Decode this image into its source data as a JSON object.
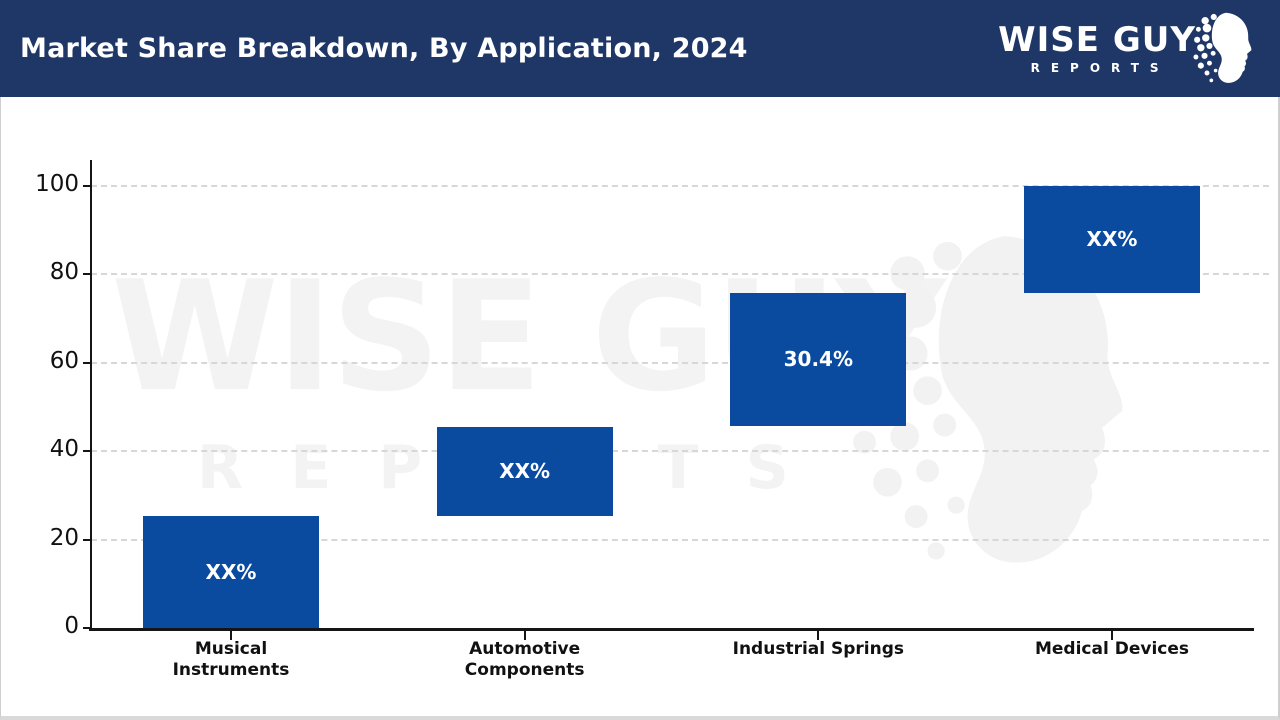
{
  "header": {
    "title": "Market Share Breakdown, By Application, 2024",
    "logo": {
      "brand": "WISE GUY",
      "sub": "REPORTS"
    }
  },
  "watermark": {
    "brand": "WISE GUY",
    "sub": "REPORTS"
  },
  "colors": {
    "header_bg": "#1f3767",
    "bar": "#0a4a9f",
    "bar_label": "#ffffff",
    "grid": "#d7d7d7",
    "axis": "#151515",
    "watermark": "#f3f3f3"
  },
  "chart_data": {
    "type": "bar",
    "subtype": "floating-waterfall",
    "title": "Market Share Breakdown, By Application, 2024",
    "xlabel": "",
    "ylabel": "",
    "ylim": [
      0,
      105
    ],
    "yticks": [
      0,
      20,
      40,
      60,
      80,
      100
    ],
    "grid": "horizontal-dashed",
    "legend": "none",
    "categories": [
      "Musical Instruments",
      "Automotive Components",
      "Industrial Springs",
      "Medical Devices"
    ],
    "category_lines": [
      [
        "Musical",
        "Instruments"
      ],
      [
        "Automotive",
        "Components"
      ],
      [
        "Industrial Springs"
      ],
      [
        "Medical Devices"
      ]
    ],
    "bars": [
      {
        "category": "Musical Instruments",
        "label": "XX%",
        "start": 0,
        "end": 25.3
      },
      {
        "category": "Automotive Components",
        "label": "XX%",
        "start": 25.4,
        "end": 45.5
      },
      {
        "category": "Industrial Springs",
        "label": "30.4%",
        "start": 45.6,
        "end": 75.9
      },
      {
        "category": "Medical Devices",
        "label": "XX%",
        "start": 75.9,
        "end": 100
      }
    ]
  }
}
